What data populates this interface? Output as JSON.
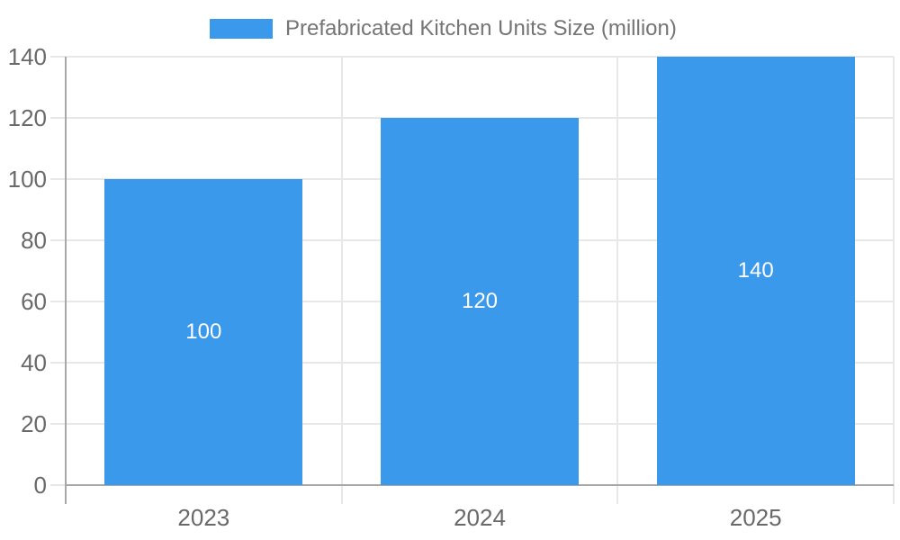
{
  "chart_data": {
    "type": "bar",
    "title": "Prefabricated Kitchen Units Size (million)",
    "legend": {
      "position": "top",
      "entries": [
        "Prefabricated Kitchen Units Size (million)"
      ]
    },
    "categories": [
      "2023",
      "2024",
      "2025"
    ],
    "values": [
      100,
      120,
      140
    ],
    "data_labels": [
      "100",
      "120",
      "140"
    ],
    "xlabel": "",
    "ylabel": "",
    "ylim": [
      0,
      140
    ],
    "yticks": [
      0,
      20,
      40,
      60,
      80,
      100,
      120,
      140
    ],
    "grid": true,
    "colors": {
      "bar": "#3B99EC",
      "data_label": "#FFFFFF",
      "axis_label": "#696969",
      "legend_text": "#757575",
      "gridline": "#E8E8E8",
      "axis_line": "#A8A8A8",
      "background": "#FFFFFF"
    }
  }
}
